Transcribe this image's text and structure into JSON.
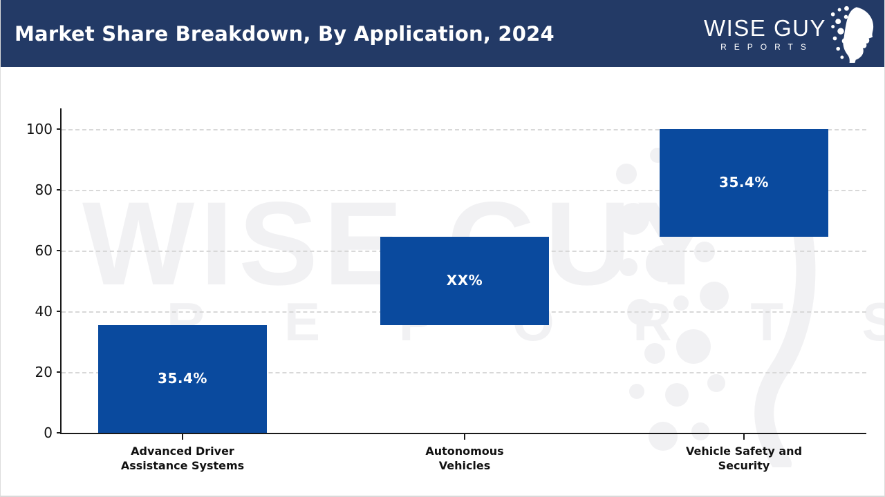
{
  "header": {
    "title": "Market Share Breakdown, By Application, 2024",
    "logo": {
      "line1": "WISE GUY",
      "line2": "REPORTS"
    }
  },
  "watermark": {
    "line1": "WISE GUY",
    "line2": "R E P O R T S"
  },
  "colors": {
    "header_bg": "#233a66",
    "bar": "#0a4a9e",
    "bar_label": "#ffffff",
    "grid": "#d8d8d8",
    "axis": "#1a1a1a",
    "watermark": "#f1f1f3",
    "page_border": "#d9d9d9"
  },
  "chart_data": {
    "type": "bar",
    "subtype": "waterfall",
    "title": "Market Share Breakdown, By Application, 2024",
    "xlabel": "",
    "ylabel": "",
    "categories": [
      [
        "Advanced Driver",
        "Assistance Systems"
      ],
      [
        "Autonomous",
        "Vehicles"
      ],
      [
        "Vehicle Safety and",
        "Security"
      ]
    ],
    "segments": [
      {
        "start": 0,
        "end": 35.4,
        "value": 35.4,
        "label": "35.4%"
      },
      {
        "start": 35.4,
        "end": 64.6,
        "value": 29.2,
        "label": "XX%"
      },
      {
        "start": 64.6,
        "end": 100,
        "value": 35.4,
        "label": "35.4%"
      }
    ],
    "yticks": [
      0,
      20,
      40,
      60,
      80,
      100
    ],
    "ylim": [
      0,
      106
    ],
    "grid": "horizontal-dashed",
    "legend": "none"
  }
}
